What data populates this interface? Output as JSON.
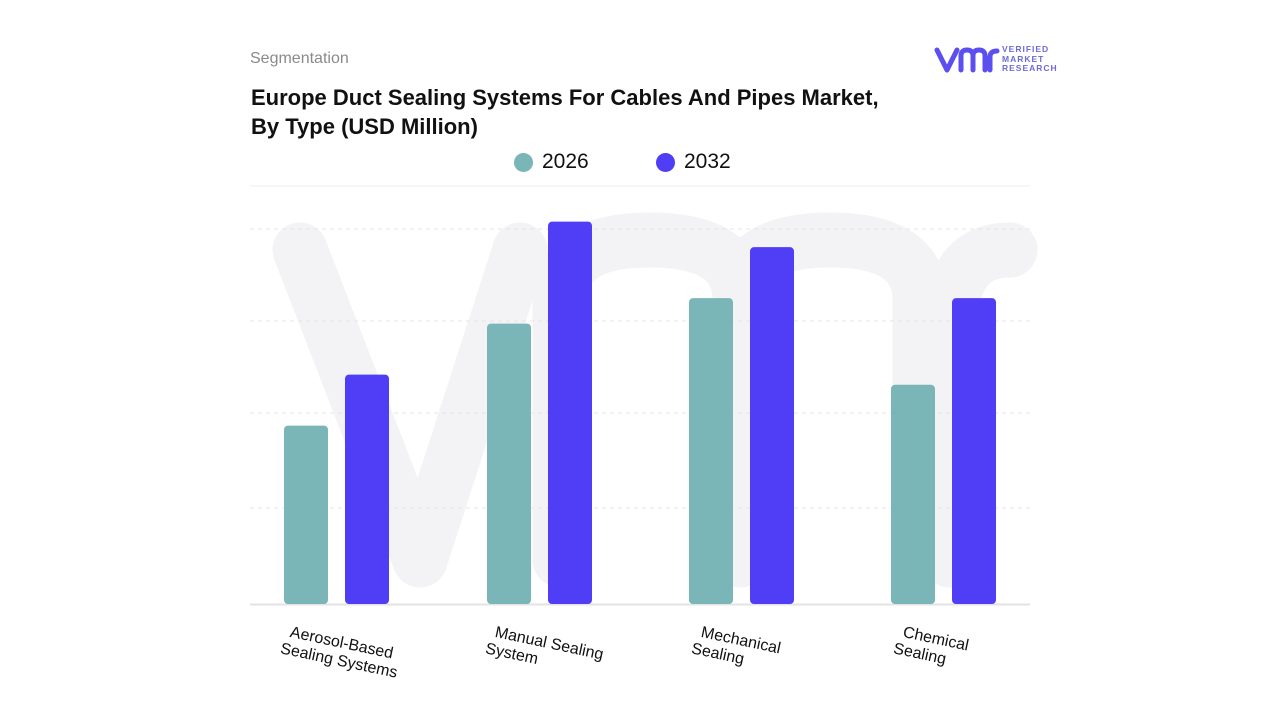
{
  "header": {
    "segment": "Segmentation",
    "title_line1": "Europe Duct Sealing Systems For Cables And Pipes Market,",
    "title_line2": "By Type (USD Million)"
  },
  "logo": {
    "icon": "vmr-logo-icon",
    "line1": "VERIFIED",
    "line2": "MARKET",
    "line3": "RESEARCH",
    "color": "#5b4ff0"
  },
  "chart_data": {
    "type": "bar",
    "title": "Europe Duct Sealing Systems For Cables And Pipes Market, By Type (USD Million)",
    "categories": [
      "Aerosol-Based Sealing Systems",
      "Manual Sealing System",
      "Mechanical Sealing",
      "Chemical Sealing"
    ],
    "category_lines": [
      [
        "Aerosol-Based",
        "Sealing Systems"
      ],
      [
        "Manual  Sealing",
        "System"
      ],
      [
        "Mechanical",
        "Sealing"
      ],
      [
        "Chemical",
        "Sealing"
      ]
    ],
    "series": [
      {
        "name": "2026",
        "color": "#7ab5b8",
        "values": [
          35,
          55,
          60,
          43
        ]
      },
      {
        "name": "2032",
        "color": "#4f3ef5",
        "values": [
          45,
          75,
          70,
          60
        ]
      }
    ],
    "ylim": [
      0,
      82
    ],
    "grid": true,
    "legend_position": "top-center"
  }
}
